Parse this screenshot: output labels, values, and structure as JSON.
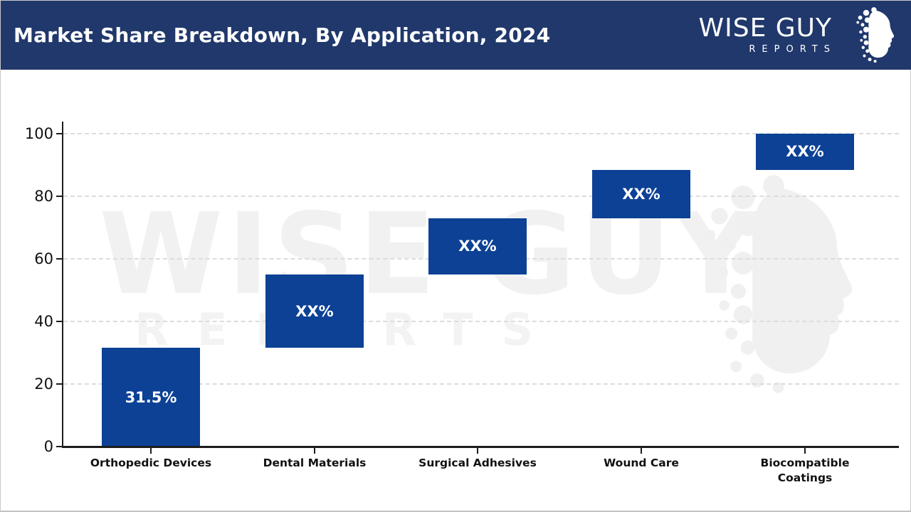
{
  "header": {
    "bg_color": "#20386b",
    "title": "Market Share Breakdown, By Application, 2024",
    "logo": {
      "line1": "WISE GUY",
      "line2": "REPORTS"
    }
  },
  "watermark": {
    "line1": "WISE GUY",
    "line2": "REPORTS"
  },
  "chart_data": {
    "type": "bar",
    "subtype": "waterfall",
    "title": "Market Share Breakdown, By Application, 2024",
    "categories": [
      "Orthopedic Devices",
      "Dental Materials",
      "Surgical Adhesives",
      "Wound Care",
      "Biocompatible Coatings"
    ],
    "segments": [
      [
        0,
        31.5
      ],
      [
        31.5,
        55
      ],
      [
        55,
        73
      ],
      [
        73,
        88.5
      ],
      [
        88.5,
        100
      ]
    ],
    "values": [
      31.5,
      23.5,
      18,
      15.5,
      11.5
    ],
    "bar_labels": [
      "31.5%",
      "XX%",
      "XX%",
      "XX%",
      "XX%"
    ],
    "y_ticks": [
      0,
      20,
      40,
      60,
      80,
      100
    ],
    "ylim": [
      0,
      100
    ],
    "xlabel": "",
    "ylabel": "",
    "grid": true,
    "grid_style": "dashed",
    "legend": false,
    "bar_color": "#0c4195",
    "label_color": "#ffffff"
  }
}
